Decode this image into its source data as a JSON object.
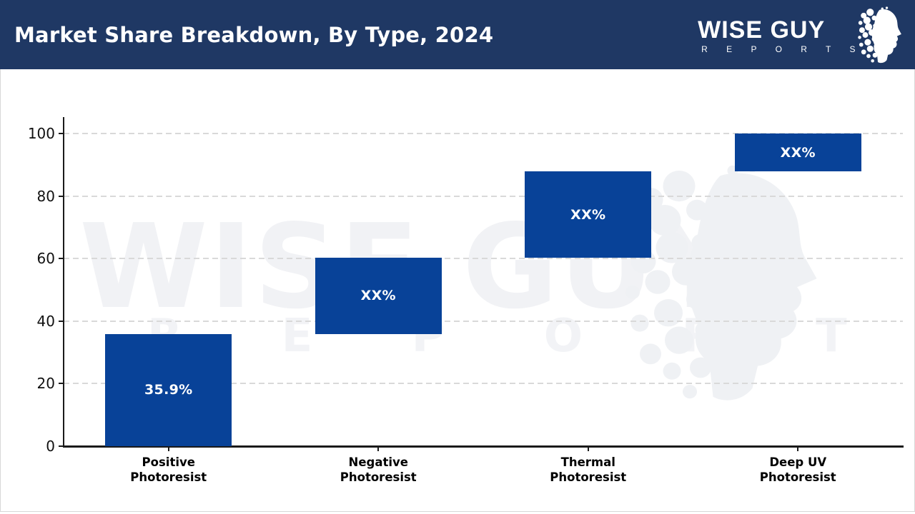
{
  "header": {
    "title": "Market Share Breakdown, By Type, 2024",
    "background_color": "#1F3864",
    "logo": {
      "wordmark": "WISE GUY",
      "subtitle": "R E P O R T S"
    }
  },
  "watermark": {
    "wordmark": "WISE GUY",
    "subtitle": "R E P O R T S"
  },
  "chart_data": {
    "type": "bar",
    "subtype": "floating-waterfall",
    "title": "Market Share Breakdown, By Type, 2024",
    "xlabel": "",
    "ylabel": "",
    "ylim": [
      0,
      100
    ],
    "yticks": [
      0,
      20,
      40,
      60,
      80,
      100
    ],
    "grid": "horizontal-dashed",
    "legend": "none",
    "bar_color": "#084298",
    "value_label_color": "#FFFFFF",
    "categories": [
      "Positive Photoresist",
      "Negative Photoresist",
      "Thermal Photoresist",
      "Deep UV Photoresist"
    ],
    "category_lines": [
      [
        "Positive",
        "Photoresist"
      ],
      [
        "Negative",
        "Photoresist"
      ],
      [
        "Thermal",
        "Photoresist"
      ],
      [
        "Deep UV",
        "Photoresist"
      ]
    ],
    "segments": [
      {
        "category": "Positive Photoresist",
        "start": 0,
        "end": 35.9,
        "label": "35.9%"
      },
      {
        "category": "Negative Photoresist",
        "start": 35.9,
        "end": 60.3,
        "label": "XX%"
      },
      {
        "category": "Thermal Photoresist",
        "start": 60.3,
        "end": 87.8,
        "label": "XX%"
      },
      {
        "category": "Deep UV Photoresist",
        "start": 87.8,
        "end": 100,
        "label": "XX%"
      }
    ]
  },
  "colors": {
    "header_bg": "#1F3864",
    "bar": "#084298",
    "grid": "#D9D9D9",
    "axis": "#1A1A1A",
    "watermark": "#F1F2F5",
    "card_border": "#D8D8D8"
  }
}
